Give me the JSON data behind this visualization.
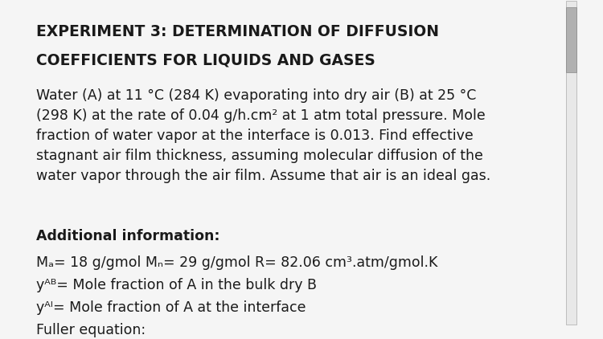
{
  "background_color": "#f5f5f5",
  "title_line1": "EXPERIMENT 3: DETERMINATION OF DIFFUSION",
  "title_line2": "COEFFICIENTS FOR LIQUIDS AND GASES",
  "body_text": "Water (A) at 11 °C (284 K) evaporating into dry air (B) at 25 °C\n(298 K) at the rate of 0.04 g/h.cm² at 1 atm total pressure. Mole\nfraction of water vapor at the interface is 0.013. Find effective\nstagnant air film thickness, assuming molecular diffusion of the\nwater vapor through the air film. Assume that air is an ideal gas.",
  "additional_label": "Additional information:",
  "line1": "Mₐ= 18 g/gmol Mₙ= 29 g/gmol R= 82.06 cm³.atm/gmol.K",
  "line2": "yᴬᴮ= Mole fraction of A in the bulk dry B",
  "line3": "yᴬᴵ= Mole fraction of A at the interface",
  "line4": "Fuller equation:",
  "font_size_title": 13.5,
  "font_size_body": 12.5,
  "text_color": "#1a1a1a",
  "scrollbar_color": "#b0b0b0"
}
